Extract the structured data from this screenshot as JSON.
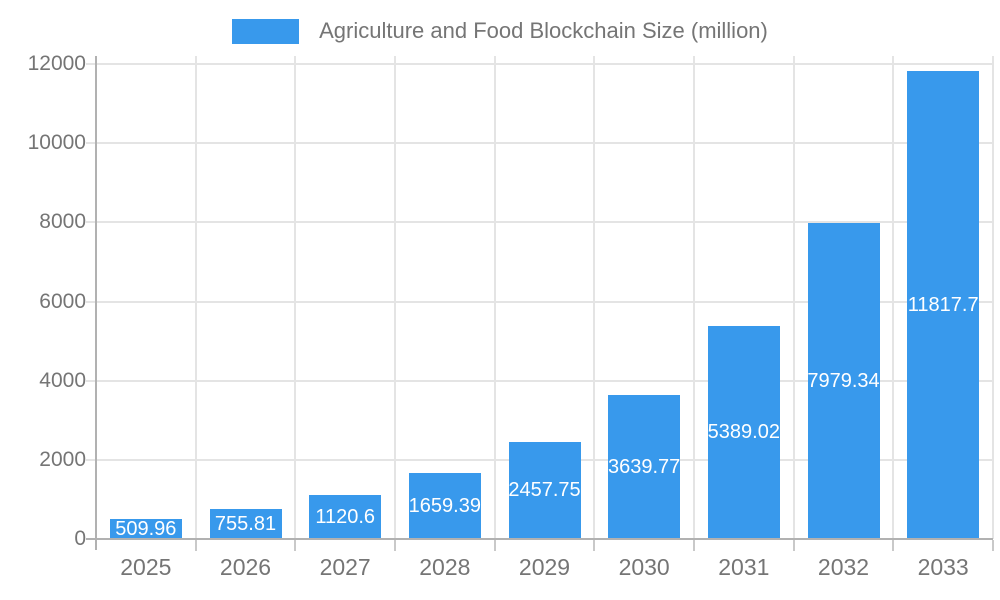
{
  "chart_data": {
    "type": "bar",
    "title": "Agriculture and Food Blockchain Size (million)",
    "categories": [
      "2025",
      "2026",
      "2027",
      "2028",
      "2029",
      "2030",
      "2031",
      "2032",
      "2033"
    ],
    "values": [
      509.96,
      755.81,
      1120.6,
      1659.39,
      2457.75,
      3639.77,
      5389.02,
      7979.34,
      11817.7
    ],
    "bar_labels": [
      "509.96",
      "755.81",
      "1120.6",
      "1659.39",
      "2457.75",
      "3639.77",
      "5389.02",
      "7979.34",
      "11817.7"
    ],
    "legend": [
      {
        "label": "Agriculture and Food Blockchain Size (million)",
        "color": "#3899EC"
      }
    ],
    "legend_position": "top-center",
    "xlabel": "",
    "ylabel": "",
    "y_ticks": [
      0,
      2000,
      4000,
      6000,
      8000,
      10000,
      12000
    ],
    "ylim": [
      0,
      12200
    ],
    "grid": true,
    "colors": {
      "bar": "#3899EC",
      "axis_text": "#757575",
      "grid_line": "#e4e4e4",
      "axis_line": "#b1b1b1",
      "bar_label_text": "#ffffff",
      "background": "#ffffff"
    }
  }
}
